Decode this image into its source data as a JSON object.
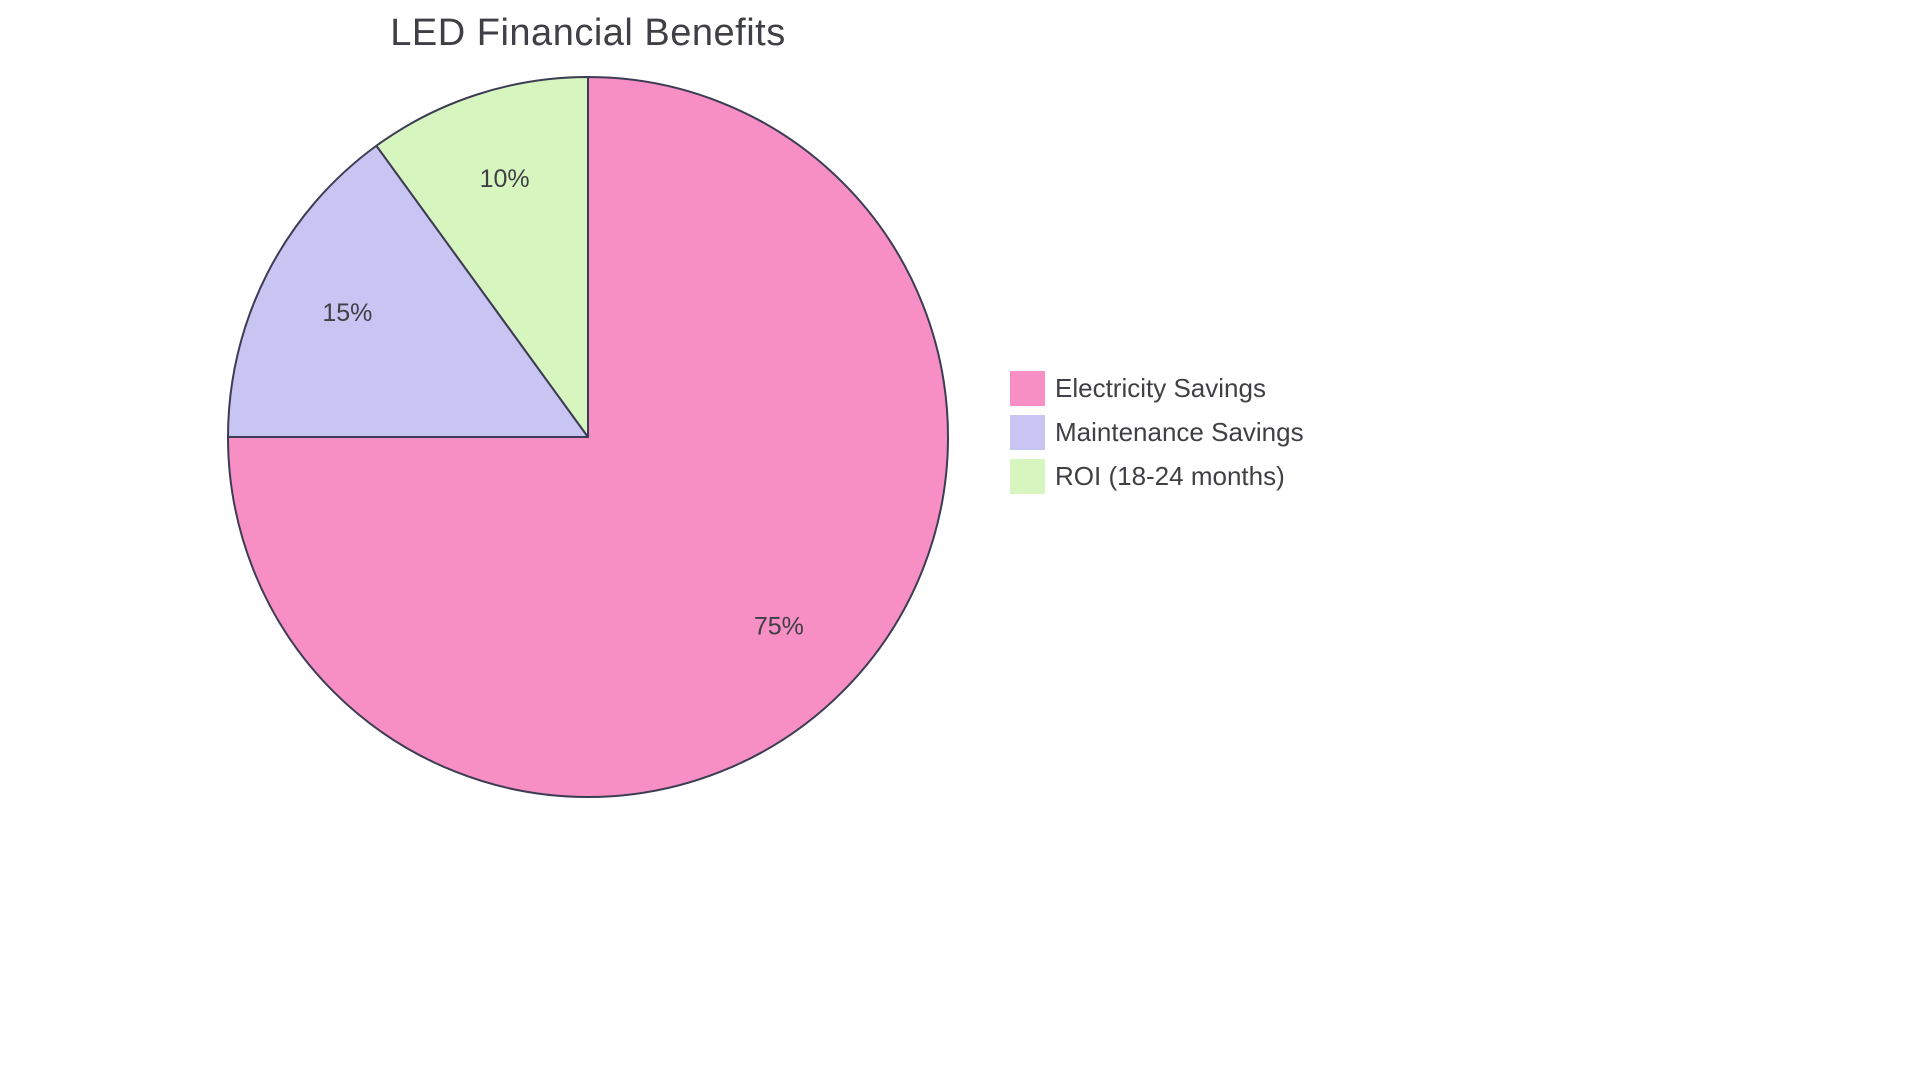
{
  "chart_data": {
    "type": "pie",
    "title": "LED Financial Benefits",
    "labels": [
      "Electricity Savings",
      "Maintenance Savings",
      "ROI (18-24 months)"
    ],
    "values": [
      75,
      15,
      10
    ],
    "value_labels": [
      "75%",
      "15%",
      "10%"
    ],
    "colors": [
      "#F78FC4",
      "#C8C5F2",
      "#D7F5BE"
    ],
    "slice_stroke_color": "#3C3C54",
    "text_color": "#3F3F46",
    "start_angle_deg": 0,
    "direction": "clockwise",
    "legend_position": "right",
    "label_radius_fraction": 0.75
  }
}
